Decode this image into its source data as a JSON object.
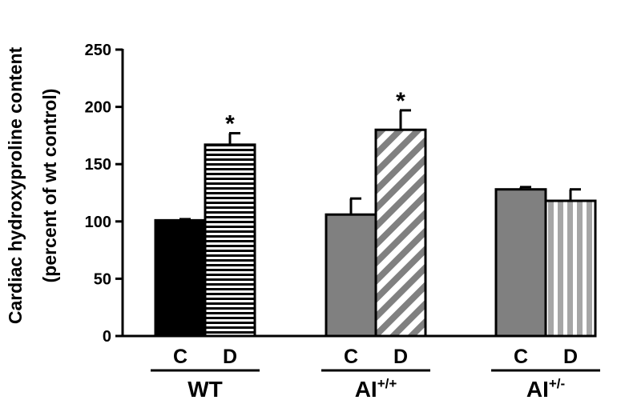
{
  "chart_data": {
    "type": "bar",
    "title": "",
    "ylabel_lines": [
      "Cardiac hydroxyproline content",
      "(percent of wt control)"
    ],
    "xlabel": "",
    "ylim": [
      0,
      250
    ],
    "yticks": [
      0,
      50,
      100,
      150,
      200,
      250
    ],
    "subcategories": [
      "C",
      "D"
    ],
    "groups": [
      {
        "name": "WT",
        "name_base": "WT",
        "name_sup": "",
        "bars": [
          {
            "category": "C",
            "value": 101,
            "error": 1,
            "significant": false,
            "fill": "solid",
            "color": "#000000"
          },
          {
            "category": "D",
            "value": 167,
            "error": 10,
            "significant": true,
            "fill": "horizontal-stripes",
            "color": "#000000"
          }
        ]
      },
      {
        "name": "AI+/+",
        "name_base": "AI",
        "name_sup": "+/+",
        "bars": [
          {
            "category": "C",
            "value": 106,
            "error": 14,
            "significant": false,
            "fill": "solid",
            "color": "#808080"
          },
          {
            "category": "D",
            "value": 180,
            "error": 17,
            "significant": true,
            "fill": "diagonal-stripes",
            "color": "#808080"
          }
        ]
      },
      {
        "name": "AI+/-",
        "name_base": "AI",
        "name_sup": "+/-",
        "bars": [
          {
            "category": "C",
            "value": 128,
            "error": 2,
            "significant": false,
            "fill": "solid",
            "color": "#808080"
          },
          {
            "category": "D",
            "value": 118,
            "error": 10,
            "significant": false,
            "fill": "vertical-stripes",
            "color": "#a6a6a6"
          }
        ]
      }
    ],
    "significance_marker": "*",
    "grid": false,
    "legend": "none"
  }
}
